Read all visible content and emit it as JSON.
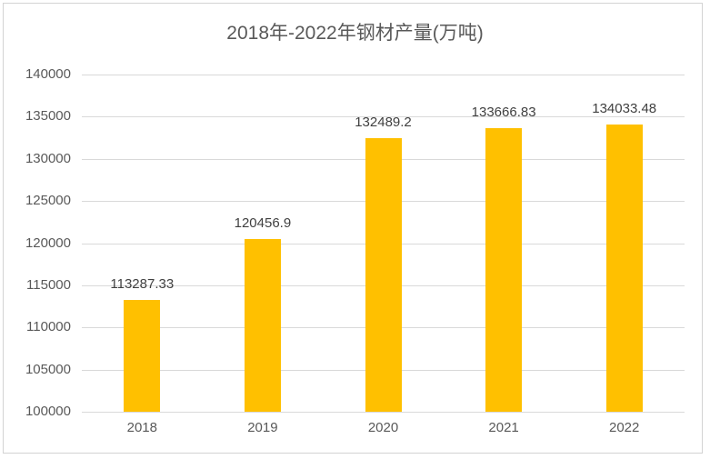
{
  "chart_data": {
    "type": "bar",
    "title": "2018年-2022年钢材产量(万吨)",
    "categories": [
      "2018",
      "2019",
      "2020",
      "2021",
      "2022"
    ],
    "values": [
      113287.33,
      120456.9,
      132489.2,
      133666.83,
      134033.48
    ],
    "data_labels": [
      "113287.33",
      "120456.9",
      "132489.2",
      "133666.83",
      "134033.48"
    ],
    "xlabel": "",
    "ylabel": "",
    "ylim": [
      100000,
      140000
    ],
    "yticks": [
      100000,
      105000,
      110000,
      115000,
      120000,
      125000,
      130000,
      135000,
      140000
    ],
    "ytick_labels": [
      "100000",
      "105000",
      "110000",
      "115000",
      "120000",
      "125000",
      "130000",
      "135000",
      "140000"
    ],
    "grid": true,
    "legend": false,
    "colors": {
      "bar": "#FFC000",
      "gridline": "#D9D9D9",
      "axis_text": "#595959",
      "data_label_text": "#404040",
      "title_text": "#595959",
      "frame_border": "#D3D3D3",
      "background": "#FFFFFF"
    }
  }
}
